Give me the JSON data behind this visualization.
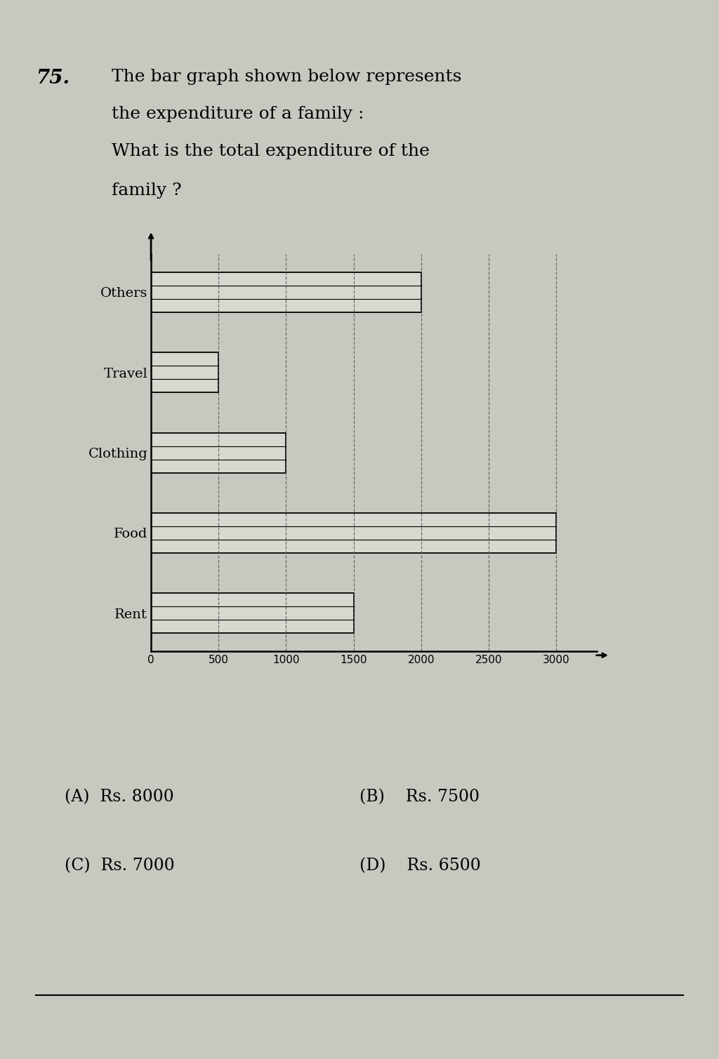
{
  "question_number": "75.",
  "question_text_line1": "The bar graph shown below represents",
  "question_text_line2": "the expenditure of a family :",
  "question_text_line3": "What is the total expenditure of the",
  "question_text_line4": "family ?",
  "categories": [
    "Others",
    "Travel",
    "Clothing",
    "Food",
    "Rent"
  ],
  "values": [
    2000,
    500,
    1000,
    3000,
    1500
  ],
  "xlim": [
    0,
    3300
  ],
  "xticks": [
    0,
    500,
    1000,
    1500,
    2000,
    2500,
    3000
  ],
  "xtick_labels": [
    "0",
    "500",
    "1000",
    "1500",
    "2000",
    "2500",
    "3000"
  ],
  "options_A": "(A)  Rs. 8000",
  "options_B": "(B)    Rs. 7500",
  "options_C": "(C)  Rs. 7000",
  "options_D": "(D)    Rs. 6500",
  "background_color": "#c8c8c0",
  "bar_color": "#d8d8d0",
  "bar_edgecolor": "#000000",
  "text_color": "#000000",
  "axis_color": "#000000",
  "internal_line_color": "#000000",
  "dashed_line_color": "#555555"
}
